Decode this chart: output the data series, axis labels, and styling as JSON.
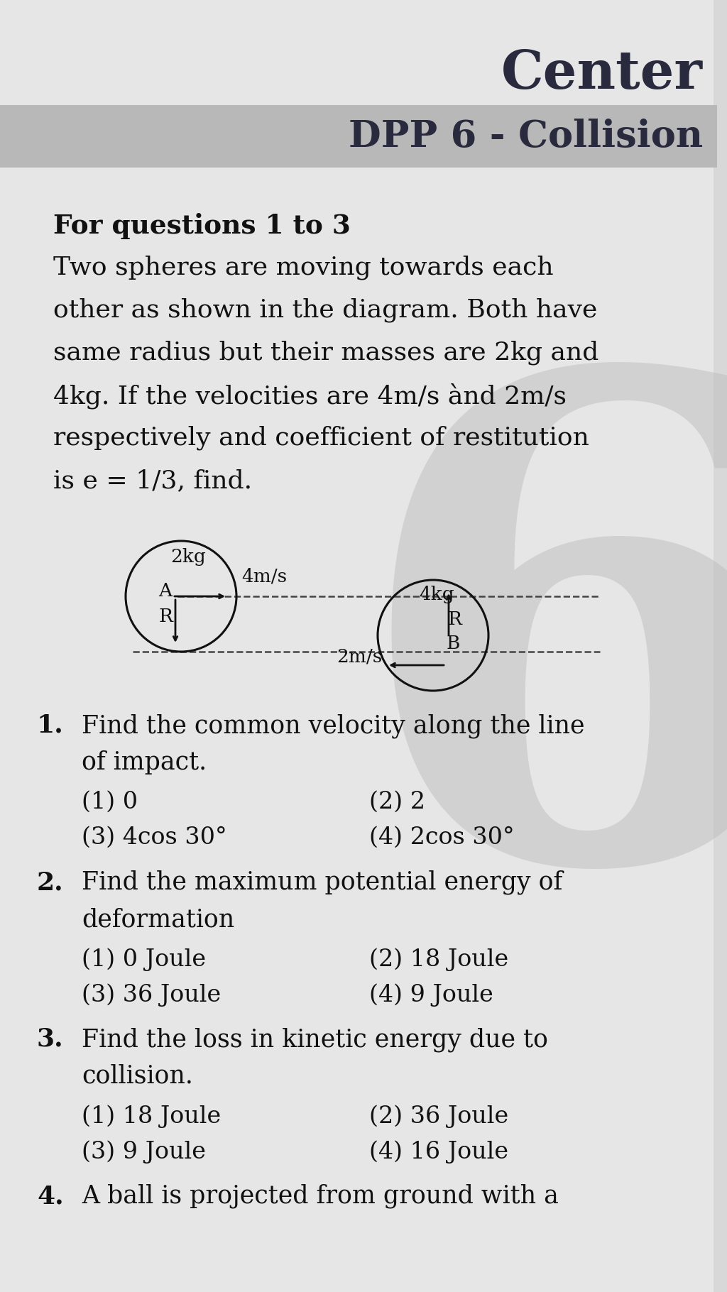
{
  "title_center": "Center",
  "title_dpp": "DPP 6 - Collision",
  "subtitle": "For questions 1 to 3",
  "para_lines": [
    "Two spheres are moving towards each",
    "other as shown in the diagram. Both have",
    "same radius but their masses are 2kg and",
    "4kg. If the velocities are 4m/s ànd 2m/s",
    "respectively and coefficient of restitution",
    "is e = 1/3, find."
  ],
  "q1_text_lines": [
    "Find the common velocity along the line",
    "of impact."
  ],
  "q1_opts": [
    "(1) 0",
    "(2) 2",
    "(3) 4cos 30°",
    "(4) 2cos 30°"
  ],
  "q2_text_lines": [
    "Find the maximum potential energy of",
    "deformation"
  ],
  "q2_opts": [
    "(1) 0 Joule",
    "(2) 18 Joule",
    "(3) 36 Joule",
    "(4) 9 Joule"
  ],
  "q3_text_lines": [
    "Find the loss in kinetic energy due to",
    "collision."
  ],
  "q3_opts": [
    "(1) 18 Joule",
    "(2) 36 Joule",
    "(3) 9 Joule",
    "(4) 16 Joule"
  ],
  "q4_text": "A ball is projected from ground with a",
  "watermark_text": "6",
  "sphere1_mass": "2kg",
  "sphere1_A": "A",
  "sphere1_R": "R",
  "sphere2_mass": "4kg",
  "sphere2_B": "B",
  "sphere2_R": "R",
  "v1_label": "4m/s",
  "v2_label": "2m/s",
  "bg_color": "#d8d8d8",
  "content_bg": "#e6e6e6",
  "header_bg": "#b8b8b8",
  "text_color": "#111111",
  "title_color": "#2a2a3e",
  "watermark_color": "#c0c0c0"
}
